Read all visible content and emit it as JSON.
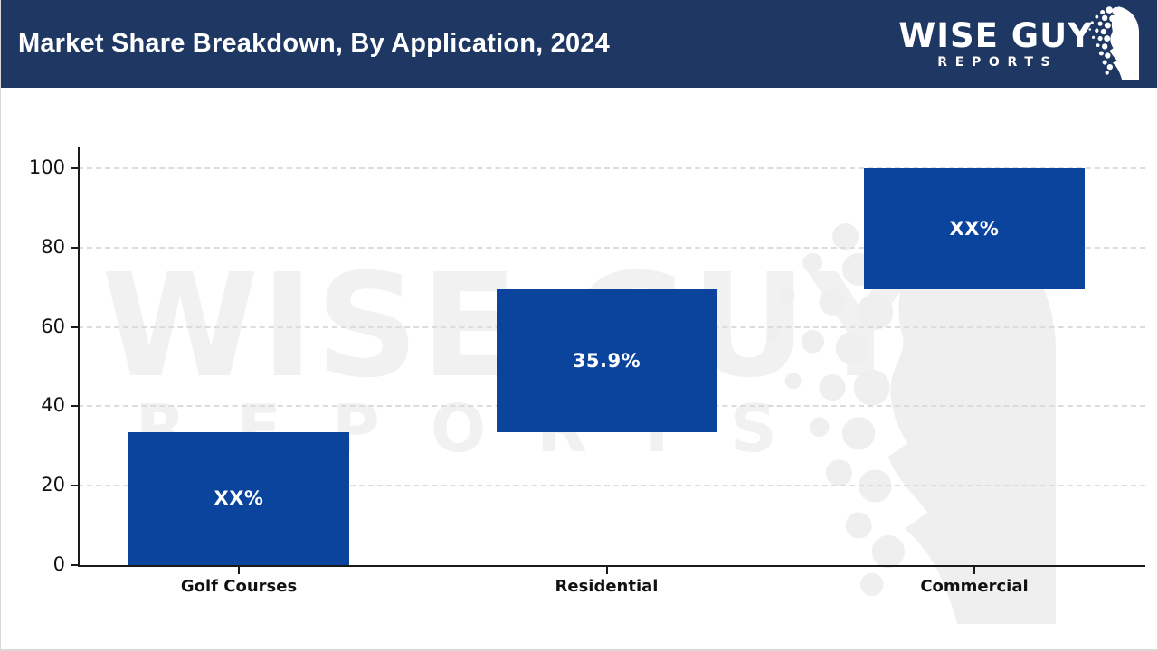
{
  "header": {
    "title": "Market Share Breakdown, By Application, 2024",
    "logo": {
      "line1": "WISE GUY",
      "line2": "REPORTS"
    }
  },
  "watermark": {
    "line1": "WISE GUY",
    "line2": "REPORTS"
  },
  "colors": {
    "header_bg": "#1f3863",
    "bar": "#0b449c",
    "grid": "#dcdcdc",
    "axis": "#1a1a1a",
    "bar_label_text": "#ffffff",
    "watermark": "#f1f1f1"
  },
  "chart_data": {
    "type": "bar",
    "subtype": "floating-stacked-segments",
    "title": "Market Share Breakdown, By Application, 2024",
    "categories": [
      "Golf Courses",
      "Residential",
      "Commercial"
    ],
    "series": [
      {
        "name": "Market Share %",
        "values": [
          33.5,
          35.9,
          30.6
        ],
        "bases": [
          0,
          33.5,
          69.4
        ],
        "labels": [
          "XX%",
          "35.9%",
          "XX%"
        ]
      }
    ],
    "xlabel": "",
    "ylabel": "",
    "yticks": [
      0,
      20,
      40,
      60,
      80,
      100
    ],
    "ylim": [
      0,
      105
    ],
    "grid": "horizontal-dashed",
    "legend": "none"
  }
}
